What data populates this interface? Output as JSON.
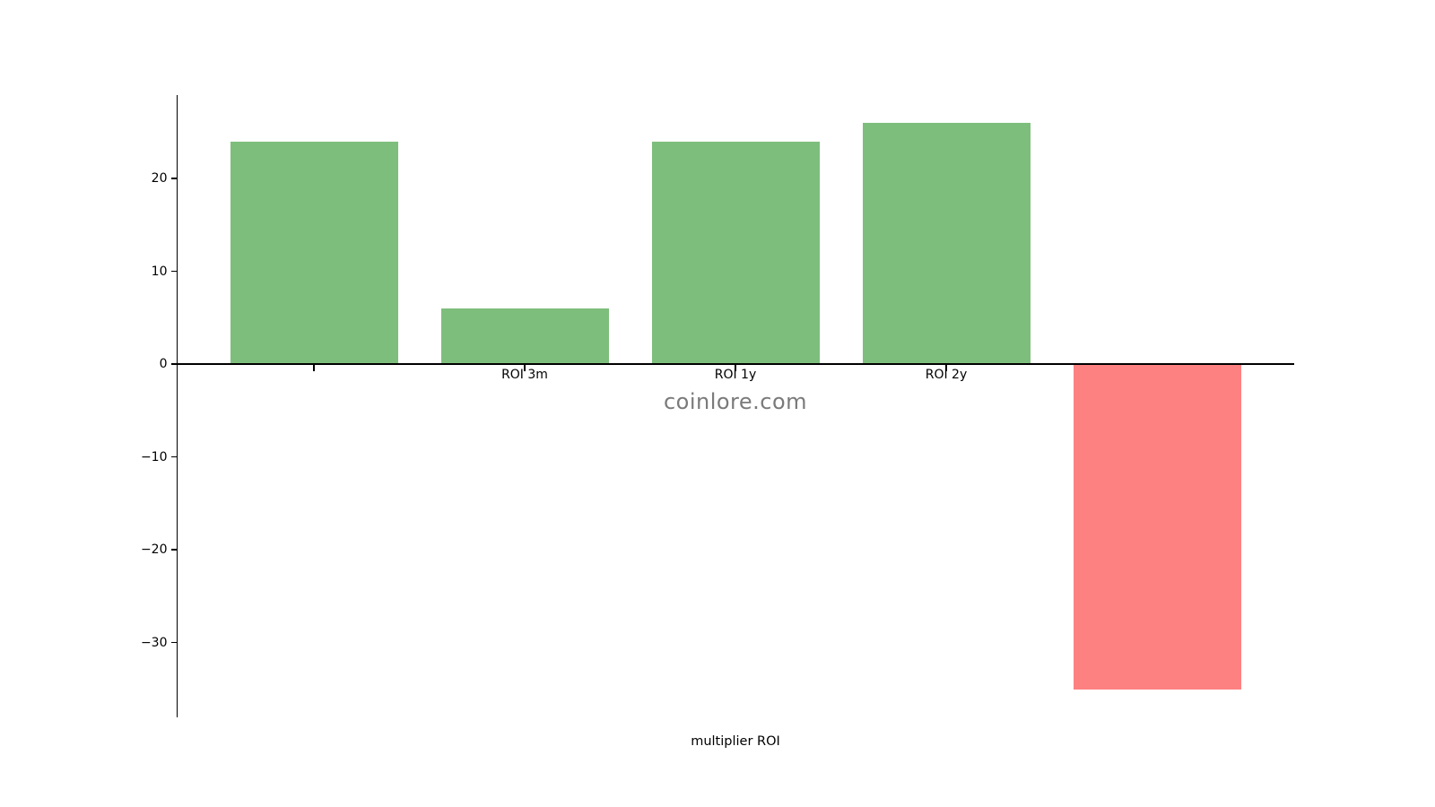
{
  "page": {
    "background": "#ffffff"
  },
  "watermark": {
    "text": "coinlore.com",
    "color": "#7a7a7a"
  },
  "chart_data": {
    "type": "bar",
    "categories": [
      "",
      "ROI 3m",
      "ROI 1y",
      "ROI 2y",
      ""
    ],
    "values": [
      24,
      6,
      24,
      26,
      -35
    ],
    "title": "",
    "xlabel": "multiplier ROI",
    "ylabel": "",
    "ylim": [
      -38,
      29
    ],
    "yticks": [
      20,
      10,
      0,
      -10,
      -20,
      -30
    ],
    "grid": false,
    "legend": false,
    "positive_color": "#7dbe7d",
    "negative_color": "#fe8181",
    "axis_color": "#000000",
    "tick_label_color": "#000000"
  }
}
